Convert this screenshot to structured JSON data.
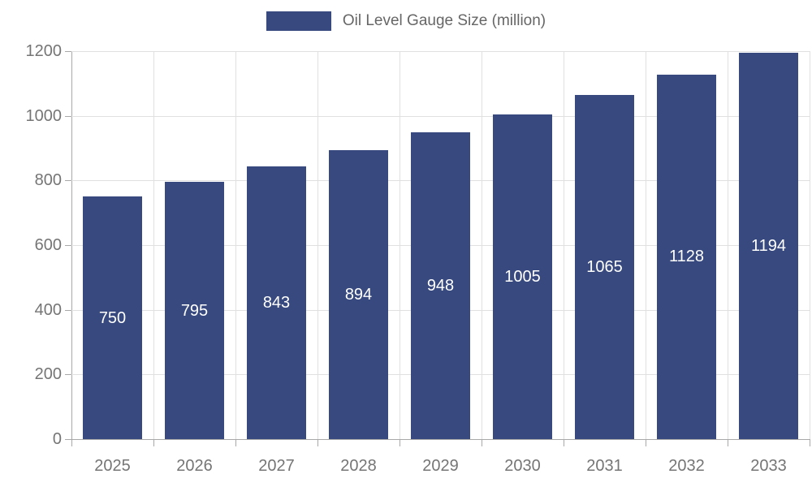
{
  "legend": {
    "label": "Oil Level Gauge Size (million)"
  },
  "chart_data": {
    "type": "bar",
    "title": "Oil Level Gauge Size (million)",
    "series_name": "Oil Level Gauge Size (million)",
    "categories": [
      "2025",
      "2026",
      "2027",
      "2028",
      "2029",
      "2030",
      "2031",
      "2032",
      "2033"
    ],
    "values": [
      750,
      795,
      843,
      894,
      948,
      1005,
      1065,
      1128,
      1194
    ],
    "value_labels": [
      "750",
      "795",
      "843",
      "894",
      "948",
      "1005",
      "1065",
      "1128",
      "1194"
    ],
    "xlabel": "",
    "ylabel": "",
    "ylim": [
      0,
      1200
    ],
    "ytick_step": 200,
    "ytick_labels": [
      "0",
      "200",
      "400",
      "600",
      "800",
      "1000",
      "1200"
    ],
    "grid": true,
    "legend_position": "top-center",
    "colors": {
      "bar": "#37497e",
      "value_label": "#ffffff",
      "gridline": "#e0e0e0",
      "axis_line": "#a8a8a8",
      "tick_label": "#757575",
      "legend_text": "#666666",
      "background": "#ffffff"
    }
  }
}
